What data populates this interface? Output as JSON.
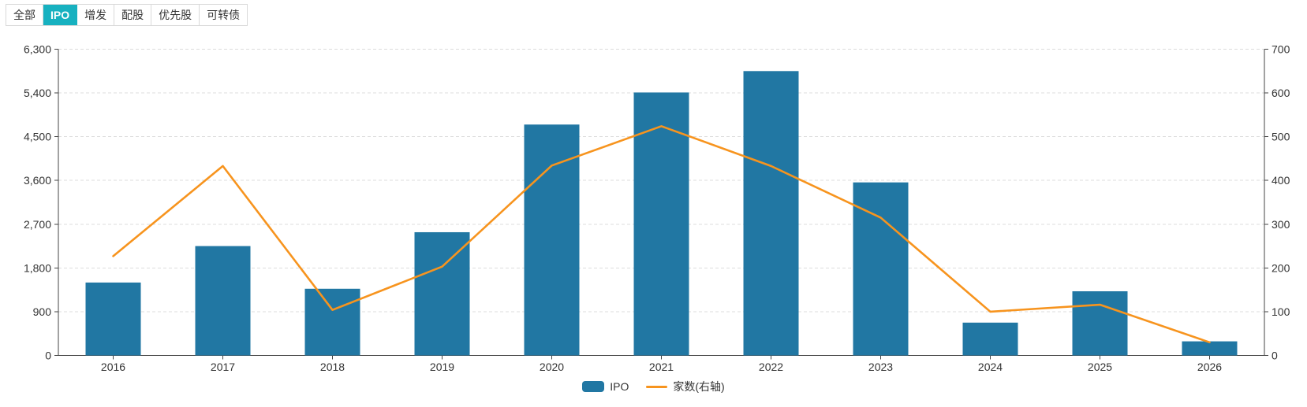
{
  "tabs": {
    "items": [
      {
        "label": "全部",
        "selected": false
      },
      {
        "label": "IPO",
        "selected": true
      },
      {
        "label": "增发",
        "selected": false
      },
      {
        "label": "配股",
        "selected": false
      },
      {
        "label": "优先股",
        "selected": false
      },
      {
        "label": "可转债",
        "selected": false
      }
    ]
  },
  "chart_data": {
    "type": "bar+line combo",
    "categories": [
      "2016",
      "2017",
      "2018",
      "2019",
      "2020",
      "2021",
      "2022",
      "2023",
      "2024",
      "2025",
      "2026"
    ],
    "series": [
      {
        "name": "IPO",
        "type": "bar",
        "axis": "left",
        "color": "#2177a3",
        "values": [
          1500,
          2250,
          1372,
          2535,
          4750,
          5410,
          5850,
          3560,
          675,
          1320,
          290
        ]
      },
      {
        "name": "家数(右轴)",
        "type": "line",
        "axis": "right",
        "color": "#f7941e",
        "values": [
          227,
          433,
          104,
          203,
          434,
          524,
          433,
          315,
          100,
          116,
          30
        ]
      }
    ],
    "left_axis": {
      "min": 0,
      "max": 6300,
      "step": 900,
      "ticks": [
        "0",
        "900",
        "1,800",
        "2,700",
        "3,600",
        "4,500",
        "5,400",
        "6,300"
      ]
    },
    "right_axis": {
      "min": 0,
      "max": 700,
      "step": 100,
      "ticks": [
        "0",
        "100",
        "200",
        "300",
        "400",
        "500",
        "600",
        "700"
      ]
    },
    "legend": [
      "IPO",
      "家数(右轴)"
    ],
    "grid": true,
    "legend_position": "bottom-center"
  },
  "colors": {
    "bar": "#2177a3",
    "line": "#f7941e",
    "tab_active_bg": "#17b1c0",
    "axis": "#454545",
    "grid": "#dcdcdc",
    "text": "#333333"
  }
}
